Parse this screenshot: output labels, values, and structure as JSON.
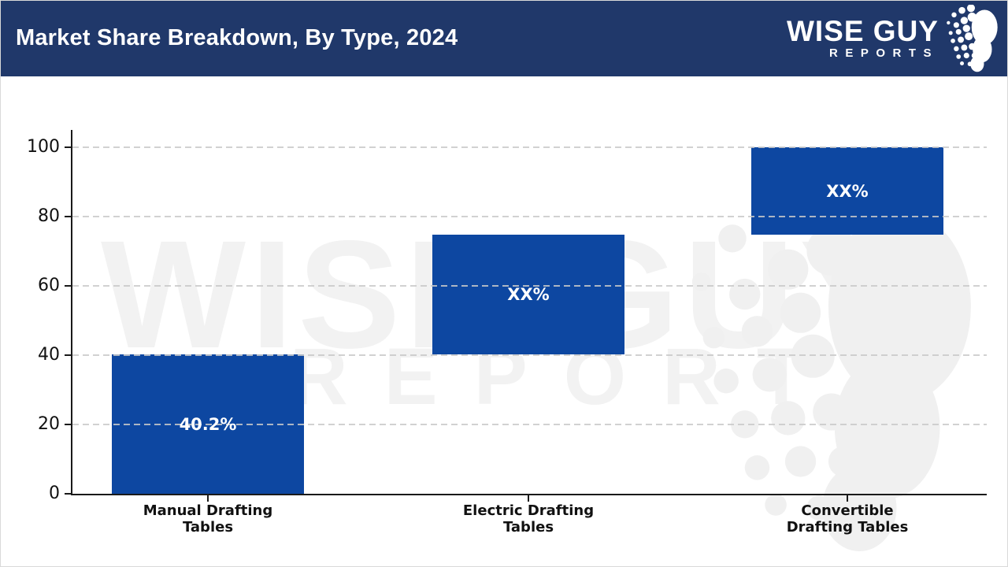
{
  "header": {
    "title": "Market Share Breakdown, By Type, 2024",
    "background_color": "#20386a",
    "logo": {
      "line1": "WISE GUY",
      "line2": "REPORTS"
    }
  },
  "watermark": {
    "line1": "WISE GUY",
    "line2": "REPORTS"
  },
  "chart_data": {
    "type": "bar",
    "subtype": "stacked-percentage-waterfall",
    "title": "Market Share Breakdown, By Type, 2024",
    "categories": [
      {
        "line1": "Manual Drafting",
        "line2": "Tables"
      },
      {
        "line1": "Electric Drafting",
        "line2": "Tables"
      },
      {
        "line1": "Convertible",
        "line2": "Drafting Tables"
      }
    ],
    "bars": [
      {
        "from": 0,
        "to": 40.2,
        "label": "40.2%"
      },
      {
        "from": 40.2,
        "to": 74.7,
        "label": "XX%"
      },
      {
        "from": 74.7,
        "to": 100,
        "label": "XX%"
      }
    ],
    "yticks": [
      0,
      20,
      40,
      60,
      80,
      100
    ],
    "ylim": [
      0,
      105
    ],
    "xlabel": "",
    "ylabel": "",
    "grid": "dashed-horizontal-above-bars",
    "legend": "none",
    "bar_color": "#0d47a1",
    "value_label_color": "#ffffff",
    "axis_color": "#1a1a1a",
    "gridline_color": "#c9c9c9"
  }
}
